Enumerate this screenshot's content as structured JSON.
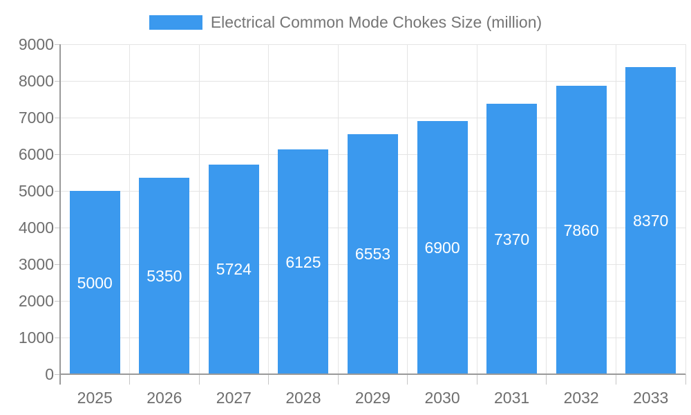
{
  "chart_data": {
    "type": "bar",
    "title": "Electrical Common Mode Chokes Size (million)",
    "legend": {
      "position": "top",
      "label": "Electrical Common Mode Chokes Size (million)"
    },
    "categories": [
      "2025",
      "2026",
      "2027",
      "2028",
      "2029",
      "2030",
      "2031",
      "2032",
      "2033"
    ],
    "series": [
      {
        "name": "Electrical Common Mode Chokes Size (million)",
        "values": [
          5000,
          5350,
          5724,
          6125,
          6553,
          6900,
          7370,
          7860,
          8370
        ]
      }
    ],
    "value_labels": [
      "5000",
      "5350",
      "5724",
      "6125",
      "6553",
      "6900",
      "7370",
      "7860",
      "8370"
    ],
    "xlabel": "",
    "ylabel": "",
    "ylim": [
      0,
      9000
    ],
    "ytick_step": 1000,
    "ytick_labels": [
      "0",
      "1000",
      "2000",
      "3000",
      "4000",
      "5000",
      "6000",
      "7000",
      "8000",
      "9000"
    ],
    "grid": true,
    "colors": {
      "bar": "#3B99EE",
      "grid": "#e4e4e4",
      "axis": "#999999",
      "tick": "#c6c6c6",
      "tick_label": "#6e6e6e",
      "legend_text": "#757575",
      "value_label": "#ffffff",
      "background": "#ffffff"
    }
  }
}
